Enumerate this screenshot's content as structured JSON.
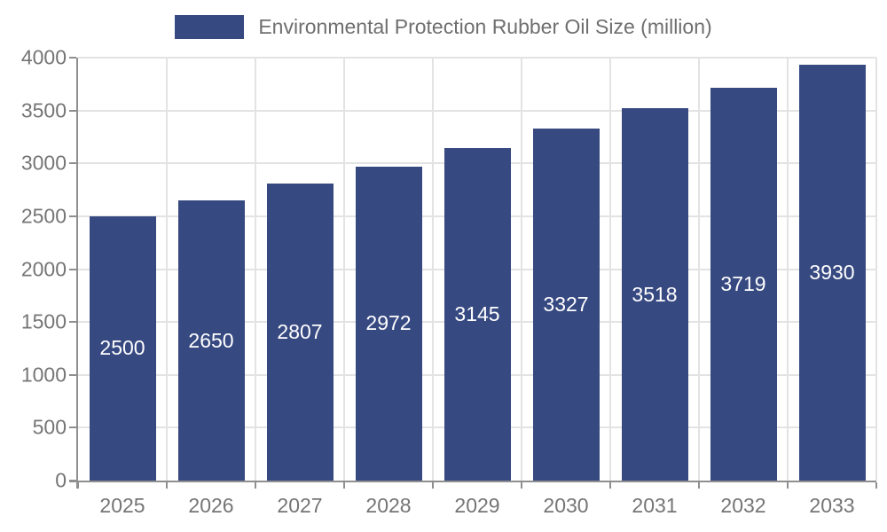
{
  "legend": {
    "label": "Environmental Protection Rubber Oil Size (million)"
  },
  "chart_data": {
    "type": "bar",
    "title": "Environmental Protection Rubber Oil Size (million)",
    "categories": [
      "2025",
      "2026",
      "2027",
      "2028",
      "2029",
      "2030",
      "2031",
      "2032",
      "2033"
    ],
    "values": [
      2500,
      2650,
      2807,
      2972,
      3145,
      3327,
      3518,
      3719,
      3930
    ],
    "xlabel": "",
    "ylabel": "",
    "ylim": [
      0,
      4000
    ],
    "ytick_step": 500,
    "yticks": [
      0,
      500,
      1000,
      1500,
      2000,
      2500,
      3000,
      3500,
      4000
    ],
    "grid": true,
    "legend_position": "top-center",
    "bar_label_position": "center-inside"
  },
  "colors": {
    "bar": "#374981",
    "bar_label": "#ffffff",
    "grid": "#e3e3e3",
    "axis": "#8f8f8f",
    "tick_label": "#757575",
    "legend_text": "#6f6f6f",
    "background": "#ffffff"
  }
}
